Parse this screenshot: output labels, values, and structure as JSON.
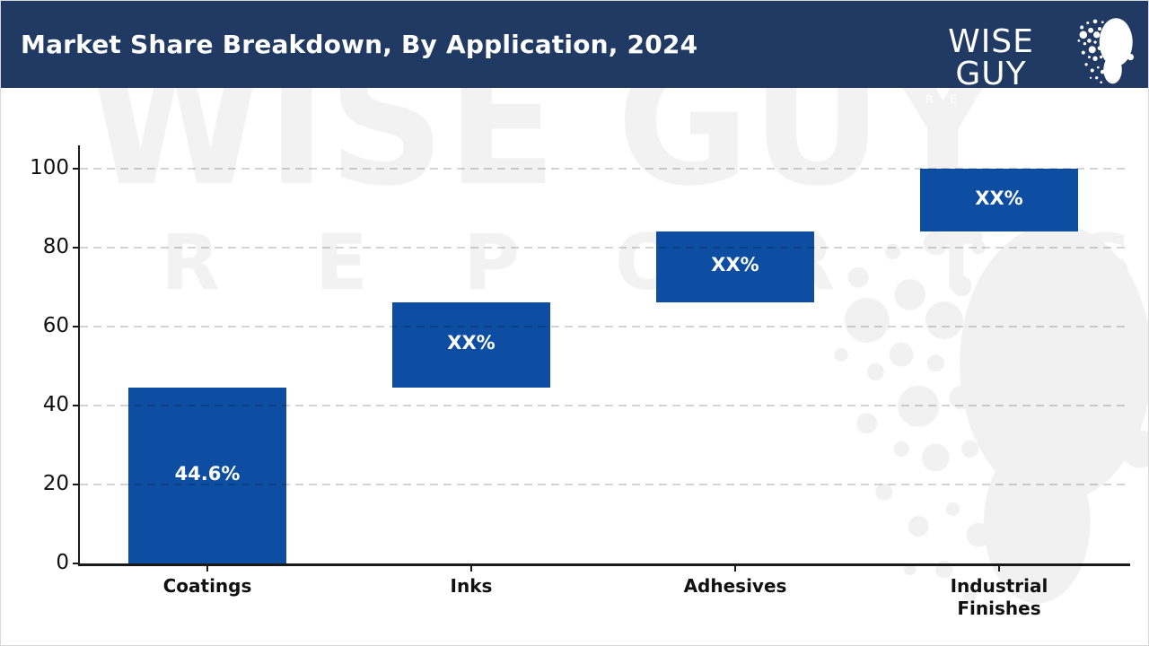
{
  "header": {
    "title": "Market Share Breakdown, By Application, 2024",
    "bg_color": "#203a63",
    "logo": {
      "line1": "WISE GUY",
      "line2": "R E P O R T S"
    }
  },
  "chart_data": {
    "type": "bar",
    "subtype": "waterfall",
    "title": "Market Share Breakdown, By Application, 2024",
    "categories": [
      "Coatings",
      "Inks",
      "Adhesives",
      "Industrial Finishes"
    ],
    "segments": [
      {
        "label": "Coatings",
        "start": 0,
        "end": 44.6,
        "bar_label": "44.6%"
      },
      {
        "label": "Inks",
        "start": 44.6,
        "end": 66.1,
        "bar_label": "XX%"
      },
      {
        "label": "Adhesives",
        "start": 66.1,
        "end": 84.2,
        "bar_label": "XX%"
      },
      {
        "label": "Industrial Finishes",
        "start": 84.2,
        "end": 100,
        "bar_label": "XX%"
      }
    ],
    "yticks": [
      0,
      20,
      40,
      60,
      80,
      100
    ],
    "ylim": [
      0,
      106
    ],
    "grid": "horizontal-dashed",
    "legend": "none",
    "bar_color": "#0d4da2",
    "grid_color": "#d4d4d4",
    "axis_color": "#1a1a1a"
  },
  "watermark": {
    "line1": "WISE GUY",
    "line2": "R E P O R T S"
  }
}
